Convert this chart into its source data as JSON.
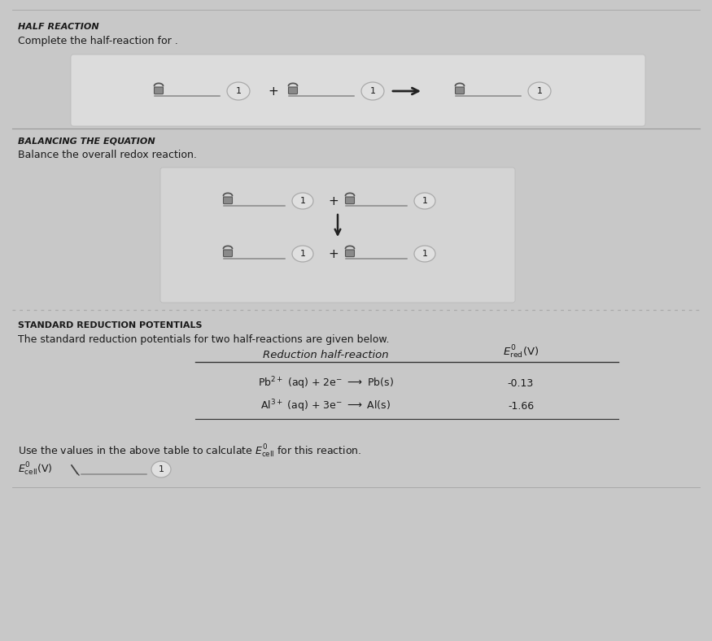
{
  "bg_color": "#c8c8c8",
  "panel1_bg": "#dcdcdc",
  "panel2_bg": "#d4d4d4",
  "dark_text": "#1a1a1a",
  "medium_text": "#333333",
  "section1_title": "HALF REACTION",
  "section1_subtitle": "Complete the half-reaction for .",
  "section2_title": "BALANCING THE EQUATION",
  "section2_subtitle": "Balance the overall redox reaction.",
  "section3_title": "STANDARD REDUCTION POTENTIALS",
  "section3_subtitle": "The standard reduction potentials for two half-reactions are given below.",
  "table_col1": "Reduction half-reaction",
  "row1_val": "-0.13",
  "row2_val": "-1.66",
  "lock_body_color": "#8a8a8a",
  "lock_shackle_color": "#555555",
  "circle_fill": "#e0e0e0",
  "circle_edge": "#aaaaaa",
  "input_line_color": "#888888",
  "arrow_color": "#222222",
  "sep_line_color": "#999999",
  "dotted_color": "#aaaaaa",
  "pencil_color": "#444444",
  "title_fontsize": 8,
  "body_fontsize": 9,
  "badge_fontsize": 8
}
